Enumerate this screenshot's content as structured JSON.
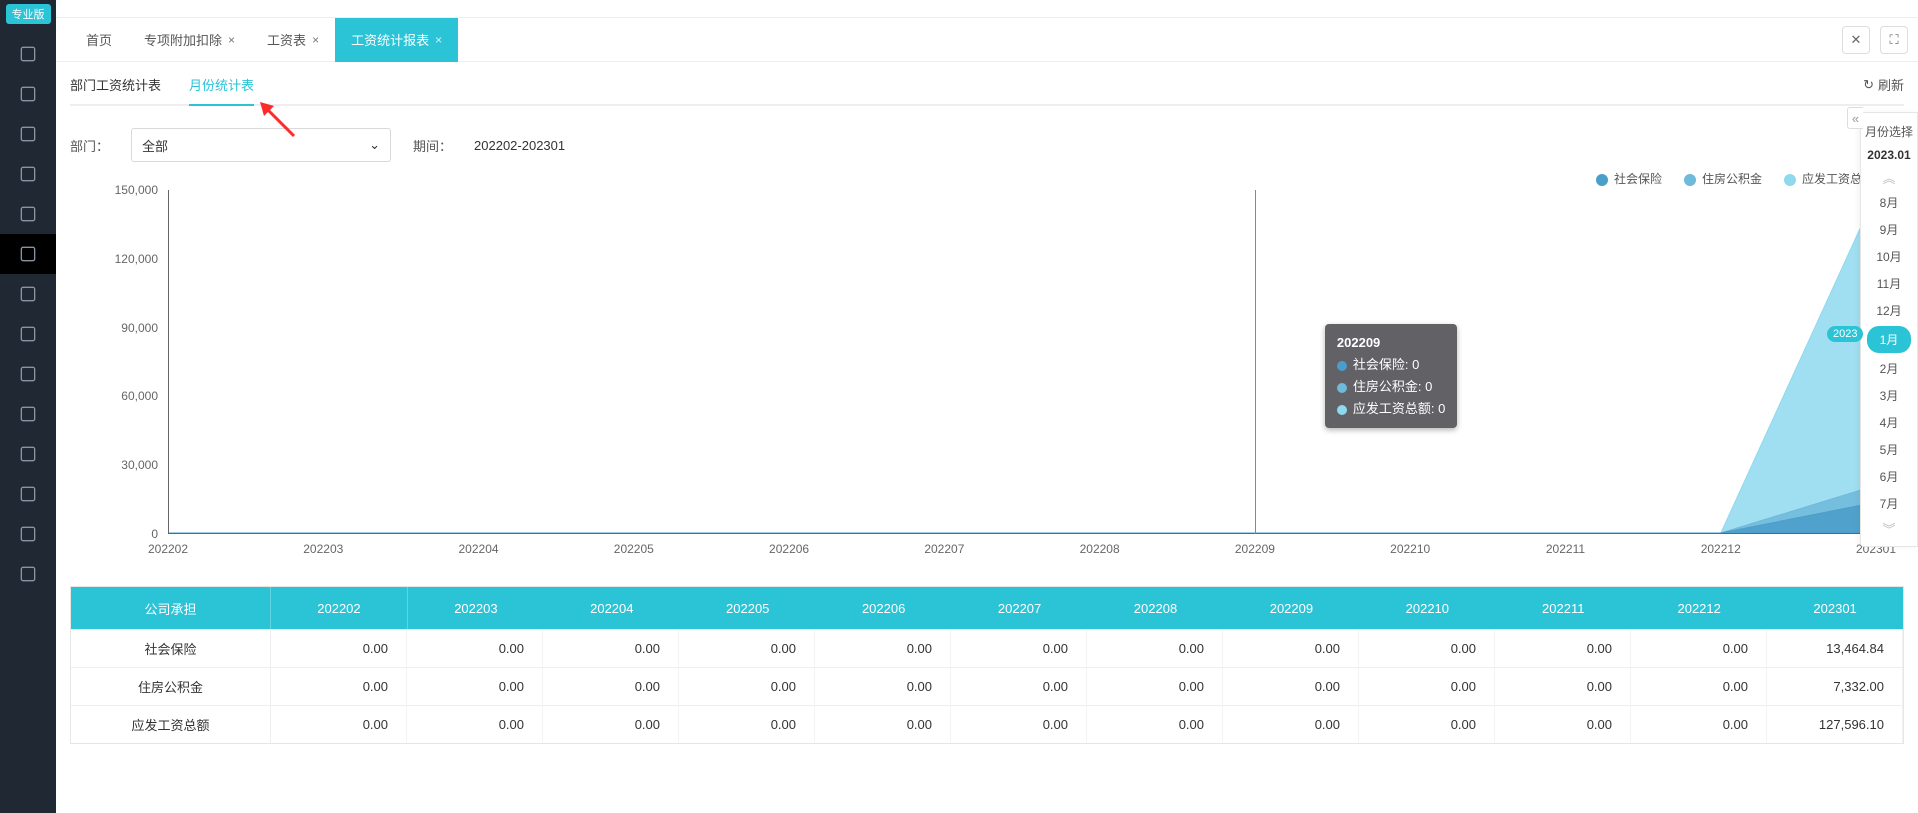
{
  "header": {
    "badge": "专业版"
  },
  "tabs": {
    "items": [
      {
        "label": "首页",
        "closable": false
      },
      {
        "label": "专项附加扣除",
        "closable": true
      },
      {
        "label": "工资表",
        "closable": true
      },
      {
        "label": "工资统计报表",
        "closable": true,
        "active": true
      }
    ]
  },
  "subtabs": {
    "items": [
      "部门工资统计表",
      "月份统计表"
    ],
    "active_index": 1,
    "refresh_label": "刷新"
  },
  "filters": {
    "dept_label": "部门：",
    "dept_value": "全部",
    "period_label": "期间：",
    "period_value": "202202-202301"
  },
  "chart": {
    "type": "area",
    "ylim": [
      0,
      150000
    ],
    "yticks": [
      0,
      30000,
      60000,
      90000,
      120000,
      150000
    ],
    "ytick_labels": [
      "0",
      "30,000",
      "60,000",
      "90,000",
      "120,000",
      "150,000"
    ],
    "xcats": [
      "202202",
      "202203",
      "202204",
      "202205",
      "202206",
      "202207",
      "202208",
      "202209",
      "202210",
      "202211",
      "202212",
      "202301"
    ],
    "series": [
      {
        "name": "社会保险",
        "color": "#4a9ec9",
        "values": [
          0,
          0,
          0,
          0,
          0,
          0,
          0,
          0,
          0,
          0,
          0,
          13465
        ]
      },
      {
        "name": "住房公积金",
        "color": "#6fb9da",
        "values": [
          0,
          0,
          0,
          0,
          0,
          0,
          0,
          0,
          0,
          0,
          0,
          20797
        ]
      },
      {
        "name": "应发工资总额",
        "color": "#8fd9ee",
        "values": [
          0,
          0,
          0,
          0,
          0,
          0,
          0,
          0,
          0,
          0,
          0,
          148393
        ]
      }
    ],
    "hover": {
      "index": 7,
      "title": "202209",
      "rows": [
        {
          "color": "#4a9ec9",
          "text": "社会保险: 0"
        },
        {
          "color": "#6fb9da",
          "text": "住房公积金: 0"
        },
        {
          "color": "#8fd9ee",
          "text": "应发工资总额: 0"
        }
      ]
    }
  },
  "table": {
    "header_first": "公司承担",
    "columns": [
      "202202",
      "202203",
      "202204",
      "202205",
      "202206",
      "202207",
      "202208",
      "202209",
      "202210",
      "202211",
      "202212",
      "202301"
    ],
    "rows": [
      {
        "label": "社会保险",
        "cells": [
          "0.00",
          "0.00",
          "0.00",
          "0.00",
          "0.00",
          "0.00",
          "0.00",
          "0.00",
          "0.00",
          "0.00",
          "0.00",
          "13,464.84"
        ]
      },
      {
        "label": "住房公积金",
        "cells": [
          "0.00",
          "0.00",
          "0.00",
          "0.00",
          "0.00",
          "0.00",
          "0.00",
          "0.00",
          "0.00",
          "0.00",
          "0.00",
          "7,332.00"
        ]
      },
      {
        "label": "应发工资总额",
        "cells": [
          "0.00",
          "0.00",
          "0.00",
          "0.00",
          "0.00",
          "0.00",
          "0.00",
          "0.00",
          "0.00",
          "0.00",
          "0.00",
          "127,596.10"
        ]
      }
    ]
  },
  "monthPanel": {
    "header": "月份选择",
    "year": "2023.01",
    "pill_year": "2023",
    "months_top": [
      "8月",
      "9月",
      "10月",
      "11月",
      "12月"
    ],
    "active_month": "1月",
    "months_bottom": [
      "2月",
      "3月",
      "4月",
      "5月",
      "6月",
      "7月"
    ]
  },
  "sidebar_icons": [
    "home",
    "doc",
    "chart",
    "bag",
    "building",
    "grid",
    "cart",
    "image",
    "stack",
    "paper",
    "inbox",
    "gear",
    "play",
    "v"
  ]
}
